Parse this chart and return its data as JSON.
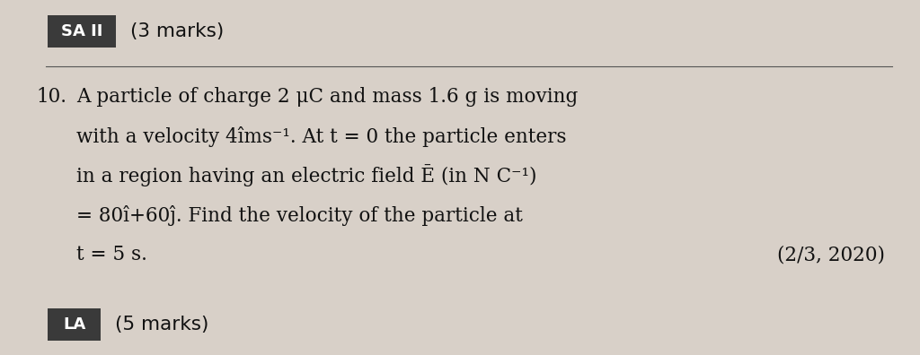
{
  "bg_color": "#d8d0c8",
  "page_bg": "#e8e0d8",
  "title_badge_text": "SA II",
  "title_badge_bg": "#3a3a3a",
  "title_badge_color": "#ffffff",
  "title_marks": "(3 marks)",
  "question_number": "10.",
  "line1": "A particle of charge 2 μC and mass 1.6 g is moving",
  "line2": "with a velocity 4îms⁻¹. At t = 0 the particle enters",
  "line3": "in a region having an electric field Ē (in N C⁻¹)",
  "line4": "= 80î+60ĵ. Find the velocity of the particle at",
  "line5": "t = 5 s.",
  "ref": "(2/3, 2020)",
  "la_badge_text": "LA",
  "la_badge_bg": "#3a3a3a",
  "la_badge_color": "#ffffff",
  "la_marks": "(5 marks)",
  "font_size_body": 15.5,
  "font_size_badge": 13,
  "font_size_marks": 15.5
}
